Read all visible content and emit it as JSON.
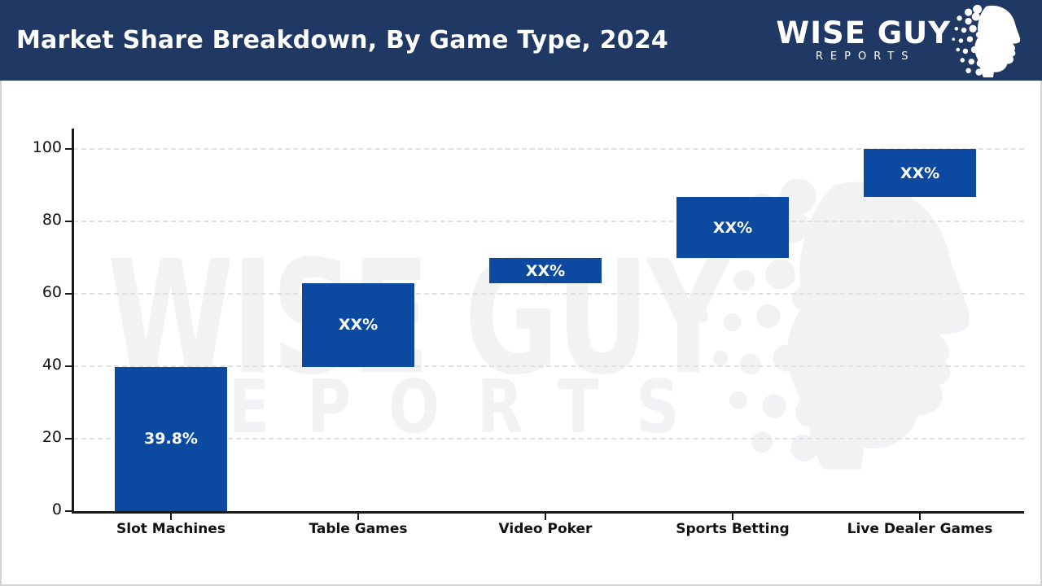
{
  "header": {
    "title": "Market Share Breakdown, By Game Type, 2024",
    "logo": {
      "line1": "WISE GUY",
      "line2": "REPORTS"
    }
  },
  "watermark": {
    "line1": "WISE GUY",
    "line2": "REPORTS"
  },
  "chart_data": {
    "type": "bar",
    "subtype": "waterfall",
    "title": "Market Share Breakdown, By Game Type, 2024",
    "categories": [
      "Slot Machines",
      "Table Games",
      "Video Poker",
      "Sports Betting",
      "Live Dealer Games"
    ],
    "segments": [
      {
        "category": "Slot Machines",
        "start": 0,
        "end": 39.8,
        "label": "39.8%"
      },
      {
        "category": "Table Games",
        "start": 39.8,
        "end": 62.9,
        "label": "XX%"
      },
      {
        "category": "Video Poker",
        "start": 62.9,
        "end": 69.9,
        "label": "XX%"
      },
      {
        "category": "Sports Betting",
        "start": 69.9,
        "end": 86.7,
        "label": "XX%"
      },
      {
        "category": "Live Dealer Games",
        "start": 86.7,
        "end": 100,
        "label": "XX%"
      }
    ],
    "yticks": [
      0,
      20,
      40,
      60,
      80,
      100
    ],
    "ylim": [
      0,
      106
    ],
    "xlabel": "",
    "ylabel": "",
    "grid": "horizontal-dashed",
    "legend": "none",
    "colors": {
      "bar": "#0b4aa0",
      "bar_label": "#ffffff",
      "header_bg": "#203864",
      "axis": "#1a1a1a",
      "grid": "#e0e0e0",
      "watermark": "#f2f2f5"
    }
  }
}
